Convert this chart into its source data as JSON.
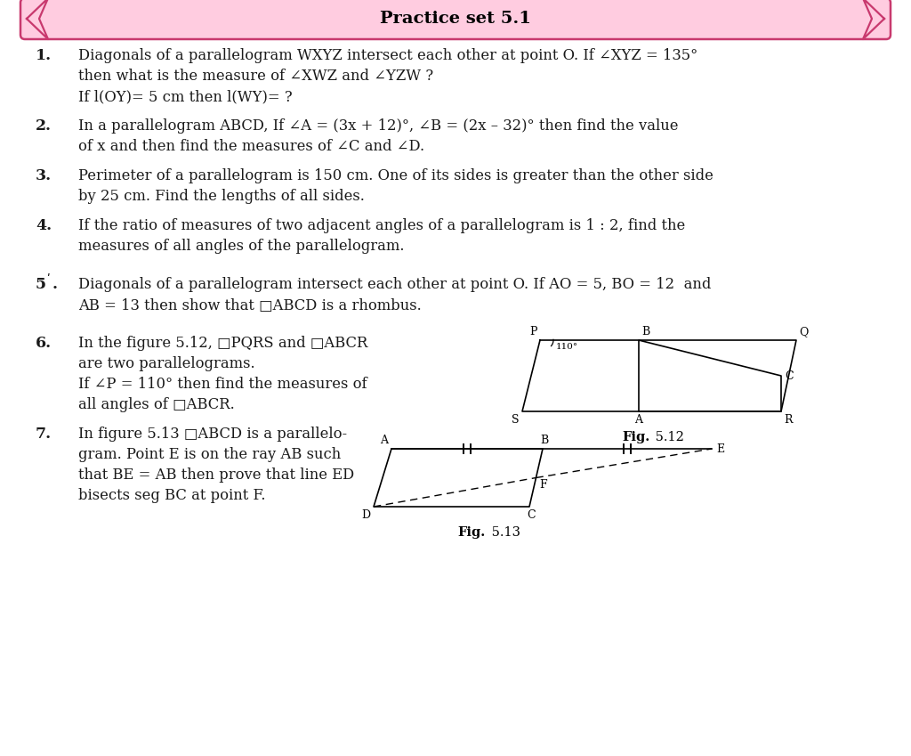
{
  "title": "Practice set 5.1",
  "bg_color": "#ffffff",
  "header_bg": "#ffcce0",
  "header_border": "#c8396e",
  "q1_num": "1.",
  "q1_lines": [
    "Diagonals of a parallelogram WXYZ intersect each other at point O. If ∠XYZ = 135°",
    "then what is the measure of ∠XWZ and ∠YZW ?",
    "If l(OY)= 5 cm then l(WY)= ?"
  ],
  "q2_num": "2.",
  "q2_lines": [
    "In a parallelogram ABCD, If ∠A = (3x + 12)°, ∠B = (2x – 32)° then find the value",
    "of x and then find the measures of ∠C and ∠D."
  ],
  "q3_num": "3.",
  "q3_lines": [
    "Perimeter of a parallelogram is 150 cm. One of its sides is greater than the other side",
    "by 25 cm. Find the lengths of all sides."
  ],
  "q4_num": "4.",
  "q4_lines": [
    "If the ratio of measures of two adjacent angles of a parallelogram is 1 : 2, find the",
    "measures of all angles of the parallelogram."
  ],
  "q5_num": "5ʹ.",
  "q5_lines": [
    "Diagonals of a parallelogram intersect each other at point O. If AO = 5, BO = 12  and",
    "AB = 13 then show that □ABCD is a rhombus."
  ],
  "q6_num": "6.",
  "q6_lines": [
    "In the figure 5.12, □PQRS and □ABCR",
    "are two parallelograms.",
    "If ∠P = 110° then find the measures of",
    "all angles of □ABCR."
  ],
  "q7_num": "7.",
  "q7_lines": [
    "In figure 5.13 □ABCD is a parallelo-",
    "gram. Point E is on the ray AB such",
    "that BE = AB then prove that line ED",
    "bisects seg BC at point F."
  ],
  "text_color": "#1a1a1a",
  "line_color": "#000000"
}
